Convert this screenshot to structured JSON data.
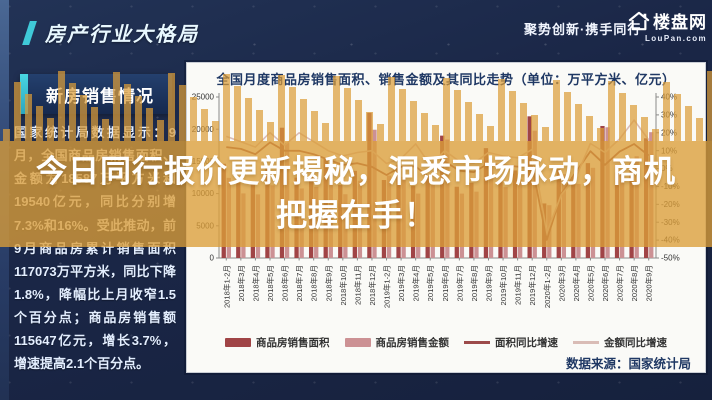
{
  "page": {
    "section_title": "房产行业大格局",
    "panel_heading": "新房销售情况",
    "tagline": "聚势创新·携手同行",
    "logo_text": "楼盘网",
    "logo_domain": "LouPan.com",
    "sidebar_paragraph": "国家统计局数据显示：9月，全国商品房销售面积、金额为18587万平方米和19540亿元，同比分别增7.3%和16%。受此推动，前9月商品房累计销售面积117073万平方米，同比下降1.8%，降幅比上月收窄1.5个百分点；商品房销售额115647亿元，增长3.7%，增速提高2.1个百分点。",
    "headline_line1": "今日同行报价更新揭秘，洞悉市场脉动，商机",
    "headline_line2": "把握在手！",
    "source_note": "数据来源：国家统计局"
  },
  "colors": {
    "background_navy": "#1a2646",
    "accent_teal": "#3fc9d8",
    "overlay_orange": "#db9d39",
    "panel_white": "#fafaf7",
    "title_navy": "#1f3864"
  },
  "chart_data": {
    "type": "bar",
    "combo": "bar+line",
    "title": "全国月度商品房销售面积、销售金额及其同比走势（单位：万平方米、亿元）",
    "categories": [
      "2018年1-2月",
      "2018年3月",
      "2018年4月",
      "2018年5月",
      "2018年6月",
      "2018年7月",
      "2018年8月",
      "2018年9月",
      "2018年10月",
      "2018年11月",
      "2018年12月",
      "2019年1-2月",
      "2019年3月",
      "2019年4月",
      "2019年5月",
      "2019年6月",
      "2019年7月",
      "2019年8月",
      "2019年9月",
      "2019年10月",
      "2019年11月",
      "2019年12月",
      "2020年1-2月",
      "2020年3月",
      "2020年4月",
      "2020年5月",
      "2020年6月",
      "2020年7月",
      "2020年8月",
      "2020年9月"
    ],
    "series": [
      {
        "name": "商品房销售面积",
        "type": "bar",
        "axis": "left",
        "color": "#a04446",
        "values": [
          14630,
          11660,
          11800,
          13910,
          20230,
          12490,
          12720,
          15420,
          11330,
          13530,
          22540,
          12110,
          14500,
          11170,
          12790,
          19000,
          11070,
          11680,
          17060,
          11900,
          13600,
          22000,
          8470,
          13780,
          12600,
          14730,
          20500,
          13300,
          14760,
          18587
        ]
      },
      {
        "name": "商品房销售金额",
        "type": "bar",
        "axis": "left",
        "color": "#cc9194",
        "values": [
          12450,
          10030,
          9880,
          11290,
          17900,
          10800,
          11050,
          13000,
          9900,
          12000,
          19920,
          12800,
          12600,
          10000,
          11350,
          18400,
          10000,
          10300,
          14700,
          11000,
          12200,
          19770,
          8200,
          13000,
          11500,
          14000,
          20300,
          13200,
          15800,
          19540
        ]
      },
      {
        "name": "面积同比增速",
        "type": "line",
        "axis": "right",
        "color": "#9c4a4a",
        "values": [
          12,
          11,
          8,
          14.6,
          10,
          9.9,
          8,
          5,
          2,
          3,
          1,
          -3.6,
          0.9,
          1.2,
          -5.5,
          4,
          -1.2,
          -2,
          2.9,
          1.9,
          1.1,
          1.3,
          -39.9,
          -14.1,
          -2.1,
          9.7,
          2.1,
          9.5,
          13.7,
          7.3
        ]
      },
      {
        "name": "金额同比增速",
        "type": "line",
        "axis": "right",
        "color": "#d9bcb6",
        "values": [
          18,
          15,
          12,
          20.1,
          13,
          20,
          15,
          10,
          7,
          9,
          10,
          2.8,
          5.6,
          13.8,
          2,
          10,
          4,
          3,
          9,
          7,
          6,
          10.7,
          -35.9,
          -14.6,
          -5,
          14,
          9,
          16.6,
          27.1,
          16
        ]
      }
    ],
    "left_axis": {
      "min": 0,
      "max": 25000,
      "step": 5000
    },
    "right_axis": {
      "min": -50,
      "max": 40,
      "step": 10,
      "suffix": "%"
    },
    "legend_position": "bottom",
    "grid": false
  }
}
